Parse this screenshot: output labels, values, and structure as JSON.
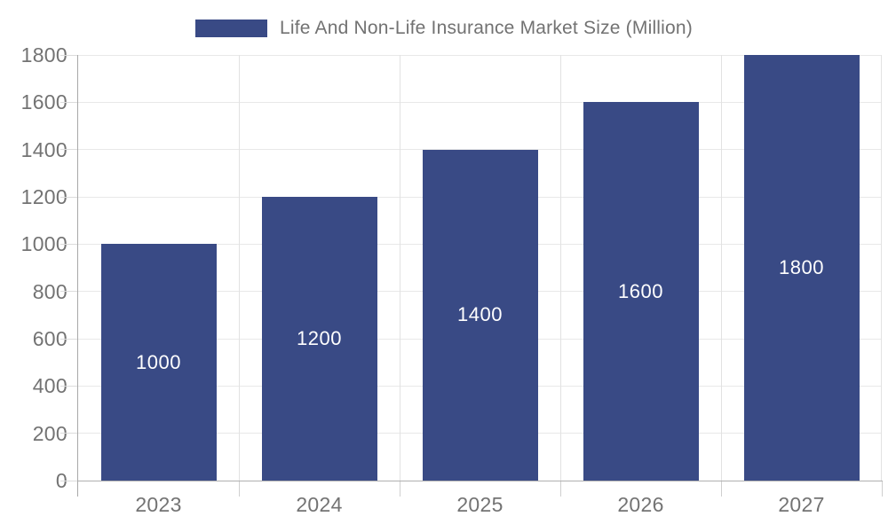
{
  "legend": {
    "label": "Life And Non-Life Insurance Market Size (Million)"
  },
  "chart_data": {
    "type": "bar",
    "title": "Life And Non-Life Insurance Market Size (Million)",
    "categories": [
      "2023",
      "2024",
      "2025",
      "2026",
      "2027"
    ],
    "values": [
      1000,
      1200,
      1400,
      1600,
      1800
    ],
    "data_labels": [
      "1000",
      "1200",
      "1400",
      "1600",
      "1800"
    ],
    "series": [
      {
        "name": "Life And Non-Life Insurance Market Size (Million)",
        "values": [
          1000,
          1200,
          1400,
          1600,
          1800
        ]
      }
    ],
    "xlabel": "",
    "ylabel": "",
    "ylim": [
      0,
      1800
    ],
    "yticks": [
      0,
      200,
      400,
      600,
      800,
      1000,
      1200,
      1400,
      1600,
      1800
    ],
    "grid": true,
    "legend_position": "top-center",
    "colors": {
      "bar": "#394A85",
      "bar_label": "#FFFFFF",
      "axis_text": "#737373",
      "legend_text": "#727272",
      "gridline": "#E8E8E8",
      "axis_line": "#AAAAAA",
      "background": "#FFFFFF"
    }
  }
}
